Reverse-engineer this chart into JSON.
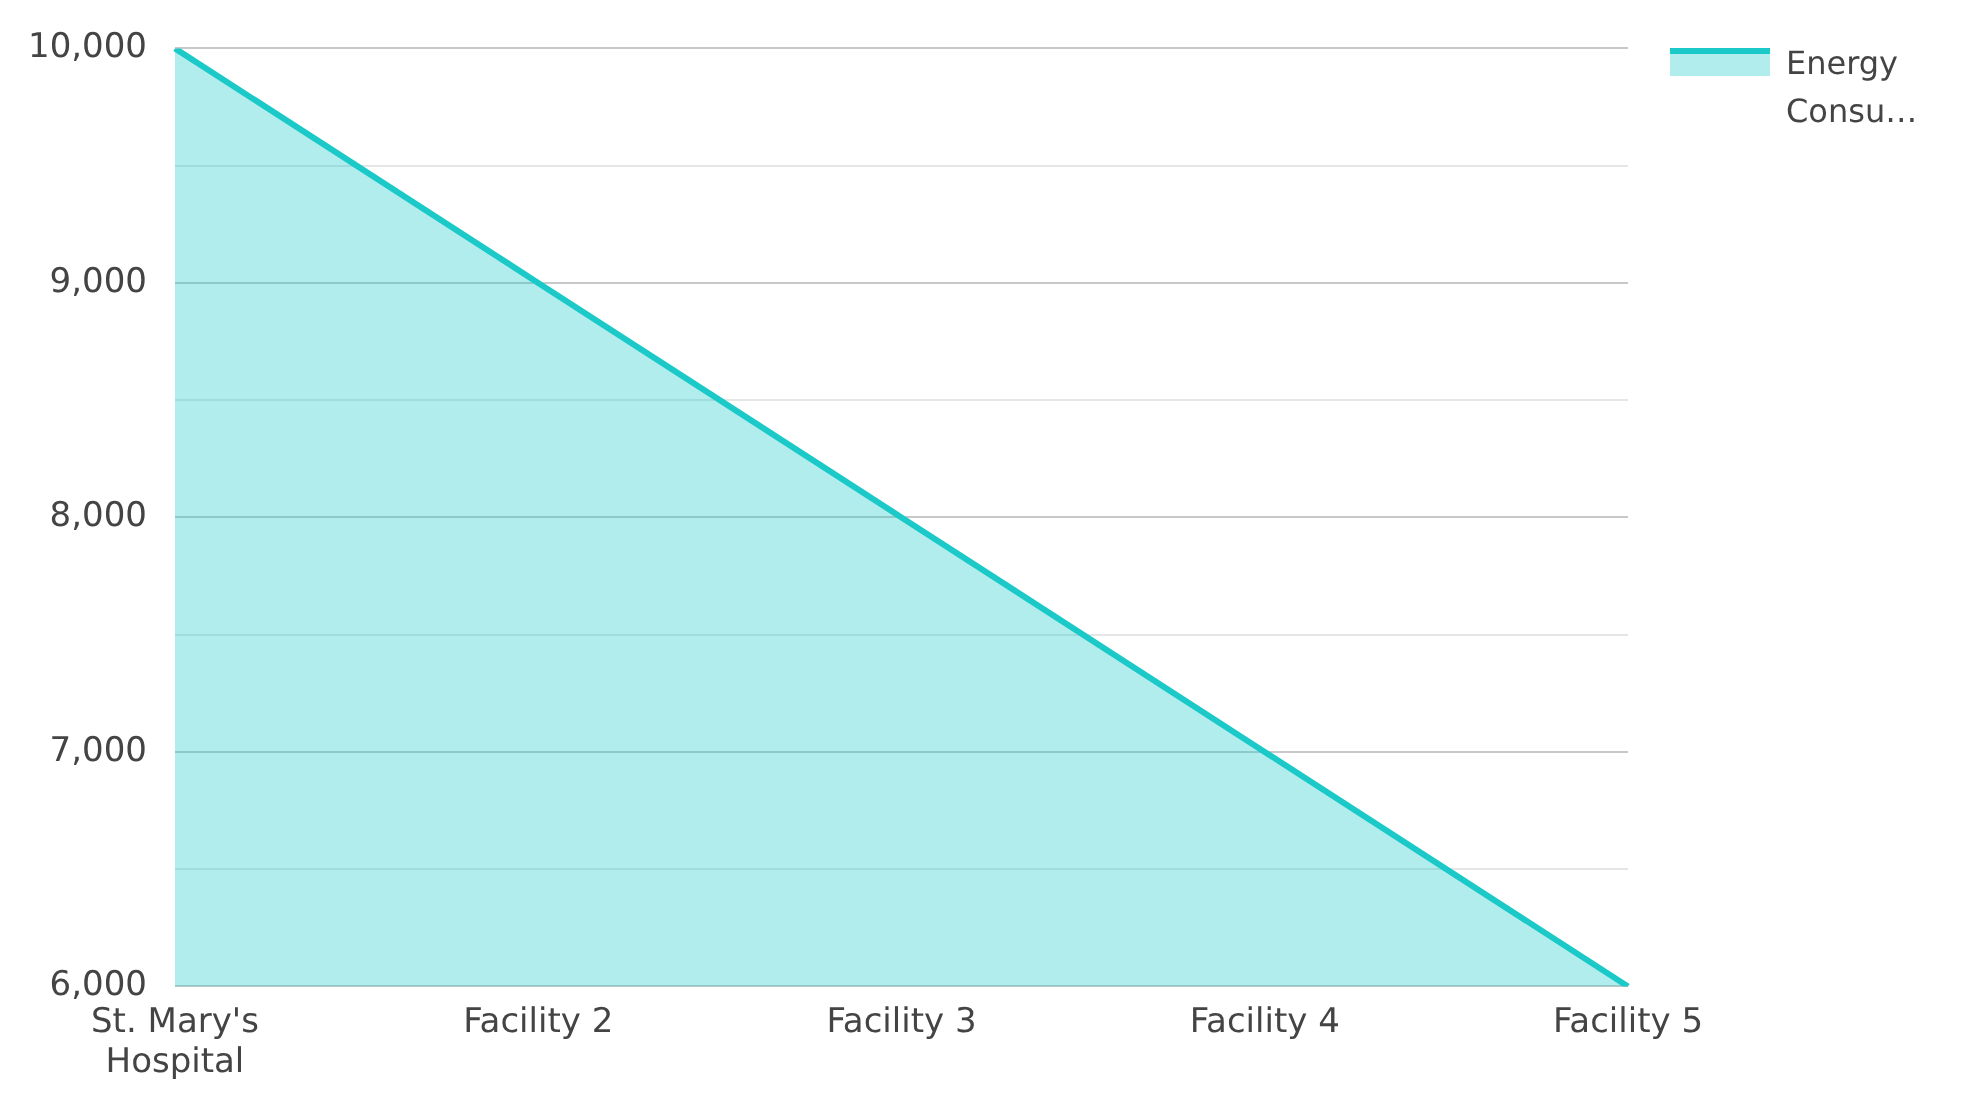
{
  "chart_data": {
    "type": "area",
    "categories": [
      "St. Mary's Hospital",
      "Facility 2",
      "Facility 3",
      "Facility 4",
      "Facility 5"
    ],
    "series": [
      {
        "name": "Energy Consu…",
        "color": "#1cc9c9",
        "values": [
          10000,
          9000,
          8000,
          7000,
          6000
        ]
      }
    ],
    "ylim": [
      6000,
      10000
    ],
    "yticks": [
      {
        "value": 6000,
        "label": "6,000"
      },
      {
        "value": 6500,
        "label": null
      },
      {
        "value": 7000,
        "label": "7,000"
      },
      {
        "value": 7500,
        "label": null
      },
      {
        "value": 8000,
        "label": "8,000"
      },
      {
        "value": 8500,
        "label": null
      },
      {
        "value": 9000,
        "label": "9,000"
      },
      {
        "value": 9500,
        "label": null
      },
      {
        "value": 10000,
        "label": "10,000"
      }
    ],
    "grid": "y",
    "legend": "top right",
    "marker": "none",
    "line_style": "solid"
  }
}
